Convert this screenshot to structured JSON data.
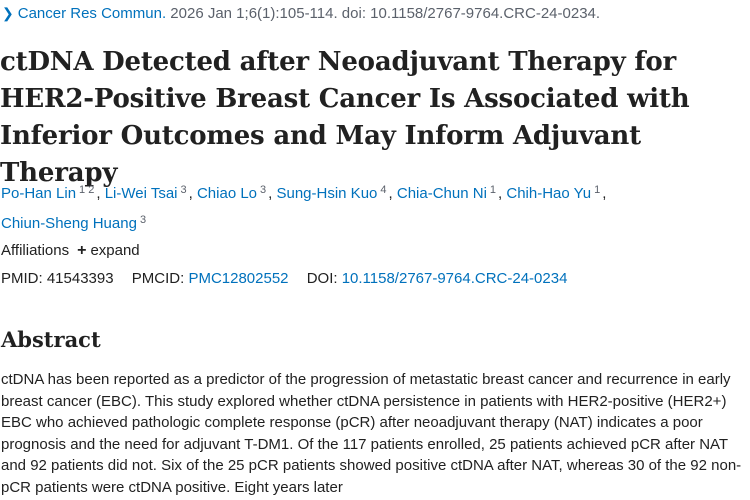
{
  "citation": {
    "chevron": "chevron-right-icon",
    "journal": "Cancer Res Commun.",
    "details": "2026 Jan 1;6(1):105-114. doi: 10.1158/2767-9764.CRC-24-0234."
  },
  "title": "ctDNA Detected after Neoadjuvant Therapy for HER2-Positive Breast Cancer Is Associated with Inferior Outcomes and May Inform Adjuvant Therapy",
  "authors": [
    {
      "name": "Po-Han Lin",
      "sup": "1 2"
    },
    {
      "name": "Li-Wei Tsai",
      "sup": "3"
    },
    {
      "name": "Chiao Lo",
      "sup": "3"
    },
    {
      "name": "Sung-Hsin Kuo",
      "sup": "4"
    },
    {
      "name": "Chia-Chun Ni",
      "sup": "1"
    },
    {
      "name": "Chih-Hao Yu",
      "sup": "1"
    },
    {
      "name": "Chiun-Sheng Huang",
      "sup": "3"
    }
  ],
  "affiliations": {
    "label": "Affiliations",
    "expand_icon": "plus-icon",
    "expand_label": "expand"
  },
  "ids": {
    "pmid_label": "PMID:",
    "pmid": "41543393",
    "pmcid_label": "PMCID:",
    "pmcid": "PMC12802552",
    "doi_label": "DOI:",
    "doi": "10.1158/2767-9764.CRC-24-0234"
  },
  "abstract": {
    "heading": "Abstract",
    "text": "ctDNA has been reported as a predictor of the progression of metastatic breast cancer and recurrence in early breast cancer (EBC). This study explored whether ctDNA persistence in patients with HER2-positive (HER2+) EBC who achieved pathologic complete response (pCR) after neoadjuvant therapy (NAT) indicates a poor prognosis and the need for adjuvant T-DM1. Of the 117 patients enrolled, 25 patients achieved pCR after NAT and 92 patients did not. Six of the 25 pCR patients showed positive ctDNA after NAT, whereas 30 of the 92 non-pCR patients were ctDNA positive. Eight years later"
  },
  "colors": {
    "link": "#0071bc",
    "text": "#212121",
    "muted": "#5b616b"
  }
}
